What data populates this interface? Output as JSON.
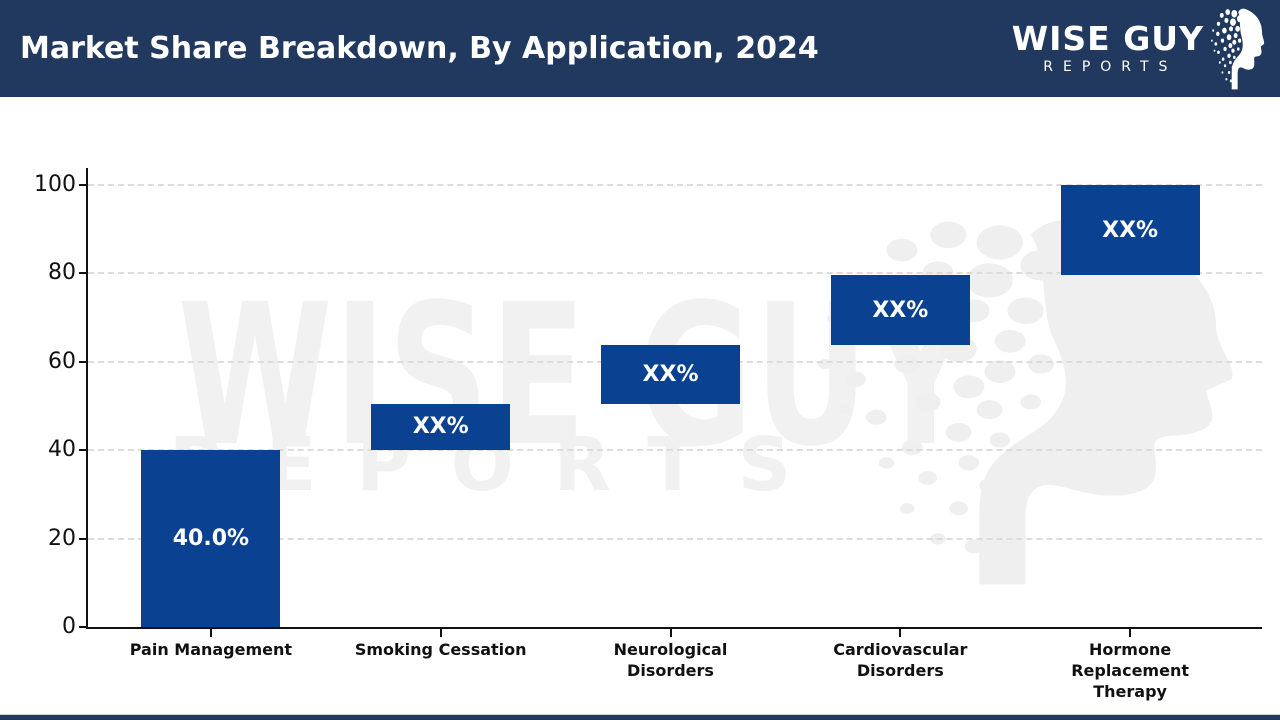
{
  "header": {
    "title": "Market Share Breakdown, By Application, 2024",
    "logo": {
      "line1": "WISE GUY",
      "line2": "REPORTS"
    }
  },
  "watermark": {
    "line1": "WISE GUY",
    "line2": "REPORTS"
  },
  "colors": {
    "header_bg": "#21395f",
    "bar": "#0a4191",
    "grid": "#dcdcdc",
    "axis": "#111111",
    "watermark_text": "#f1f1f1",
    "watermark_face": "#efefef",
    "bar_label": "#ffffff"
  },
  "chart_data": {
    "type": "bar",
    "subtype": "floating-waterfall",
    "title": "Market Share Breakdown, By Application, 2024",
    "categories": [
      "Pain Management",
      "Smoking Cessation",
      "Neurological\nDisorders",
      "Cardiovascular\nDisorders",
      "Hormone\nReplacement\nTherapy"
    ],
    "segments": [
      {
        "category": "Pain Management",
        "start": 0,
        "end": 40,
        "label": "40.0%"
      },
      {
        "category": "Smoking Cessation",
        "start": 40,
        "end": 50.5,
        "label": "XX%"
      },
      {
        "category": "Neurological Disorders",
        "start": 50.5,
        "end": 63.7,
        "label": "XX%"
      },
      {
        "category": "Cardiovascular Disorders",
        "start": 63.7,
        "end": 79.6,
        "label": "XX%"
      },
      {
        "category": "Hormone Replacement Therapy",
        "start": 79.6,
        "end": 100,
        "label": "XX%"
      }
    ],
    "yticks": [
      0,
      20,
      40,
      60,
      80,
      100
    ],
    "ylim": [
      0,
      103.5
    ],
    "xlabel": "",
    "ylabel": "",
    "grid": "horizontal-dashed",
    "legend": "none"
  }
}
